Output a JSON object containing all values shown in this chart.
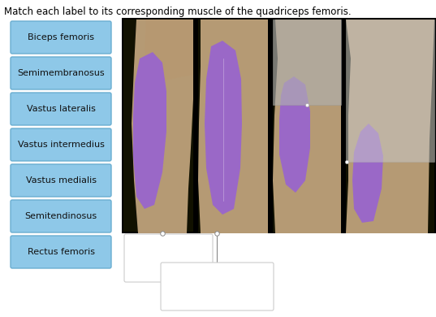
{
  "title": "Match each label to its corresponding muscle of the quadriceps femoris.",
  "title_fontsize": 8.5,
  "title_color": "#000000",
  "background_color": "#ffffff",
  "labels": [
    "Biceps femoris",
    "Semimembranosus",
    "Vastus lateralis",
    "Vastus intermedius",
    "Vastus medialis",
    "Semitendinosus",
    "Rectus femoris"
  ],
  "label_box_color": "#8ec8e8",
  "label_box_edge_color": "#6aaed0",
  "label_text_color": "#111111",
  "label_fontsize": 8.0,
  "fig_width": 5.37,
  "fig_height": 3.9,
  "fig_dpi": 100
}
